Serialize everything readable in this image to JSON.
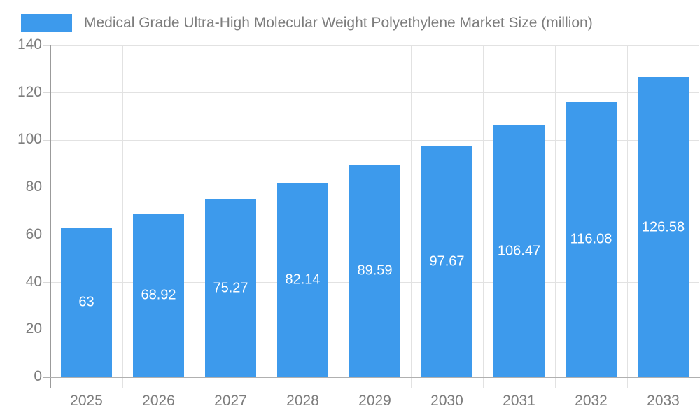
{
  "chart_data": {
    "type": "bar",
    "title": "Medical Grade Ultra-High Molecular Weight Polyethylene Market Size (million)",
    "legend": {
      "position": "top",
      "entries": [
        {
          "label": "Medical Grade Ultra-High Molecular Weight Polyethylene Market Size (million)",
          "color": "#3d9aec"
        }
      ]
    },
    "categories": [
      "2025",
      "2026",
      "2027",
      "2028",
      "2029",
      "2030",
      "2031",
      "2032",
      "2033"
    ],
    "series": [
      {
        "name": "Medical Grade Ultra-High Molecular Weight Polyethylene Market Size (million)",
        "values": [
          63,
          68.92,
          75.27,
          82.14,
          89.59,
          97.67,
          106.47,
          116.08,
          126.58
        ],
        "value_labels": [
          "63",
          "68.92",
          "75.27",
          "82.14",
          "89.59",
          "97.67",
          "106.47",
          "116.08",
          "126.58"
        ]
      }
    ],
    "xlabel": "",
    "ylabel": "",
    "ylim": [
      0,
      140
    ],
    "yticks": [
      0,
      20,
      40,
      60,
      80,
      100,
      120,
      140
    ],
    "grid": true,
    "value_label_position": "center-of-bar"
  },
  "colors": {
    "bar": "#3d9aec",
    "grid": "#e2e2e2",
    "axis_line": "#9b9b9b",
    "baseline": "#b0b0b0",
    "tick": "#d9d9d9",
    "text": "#7d7d7d",
    "value_text": "#ffffff",
    "background": "#ffffff"
  }
}
